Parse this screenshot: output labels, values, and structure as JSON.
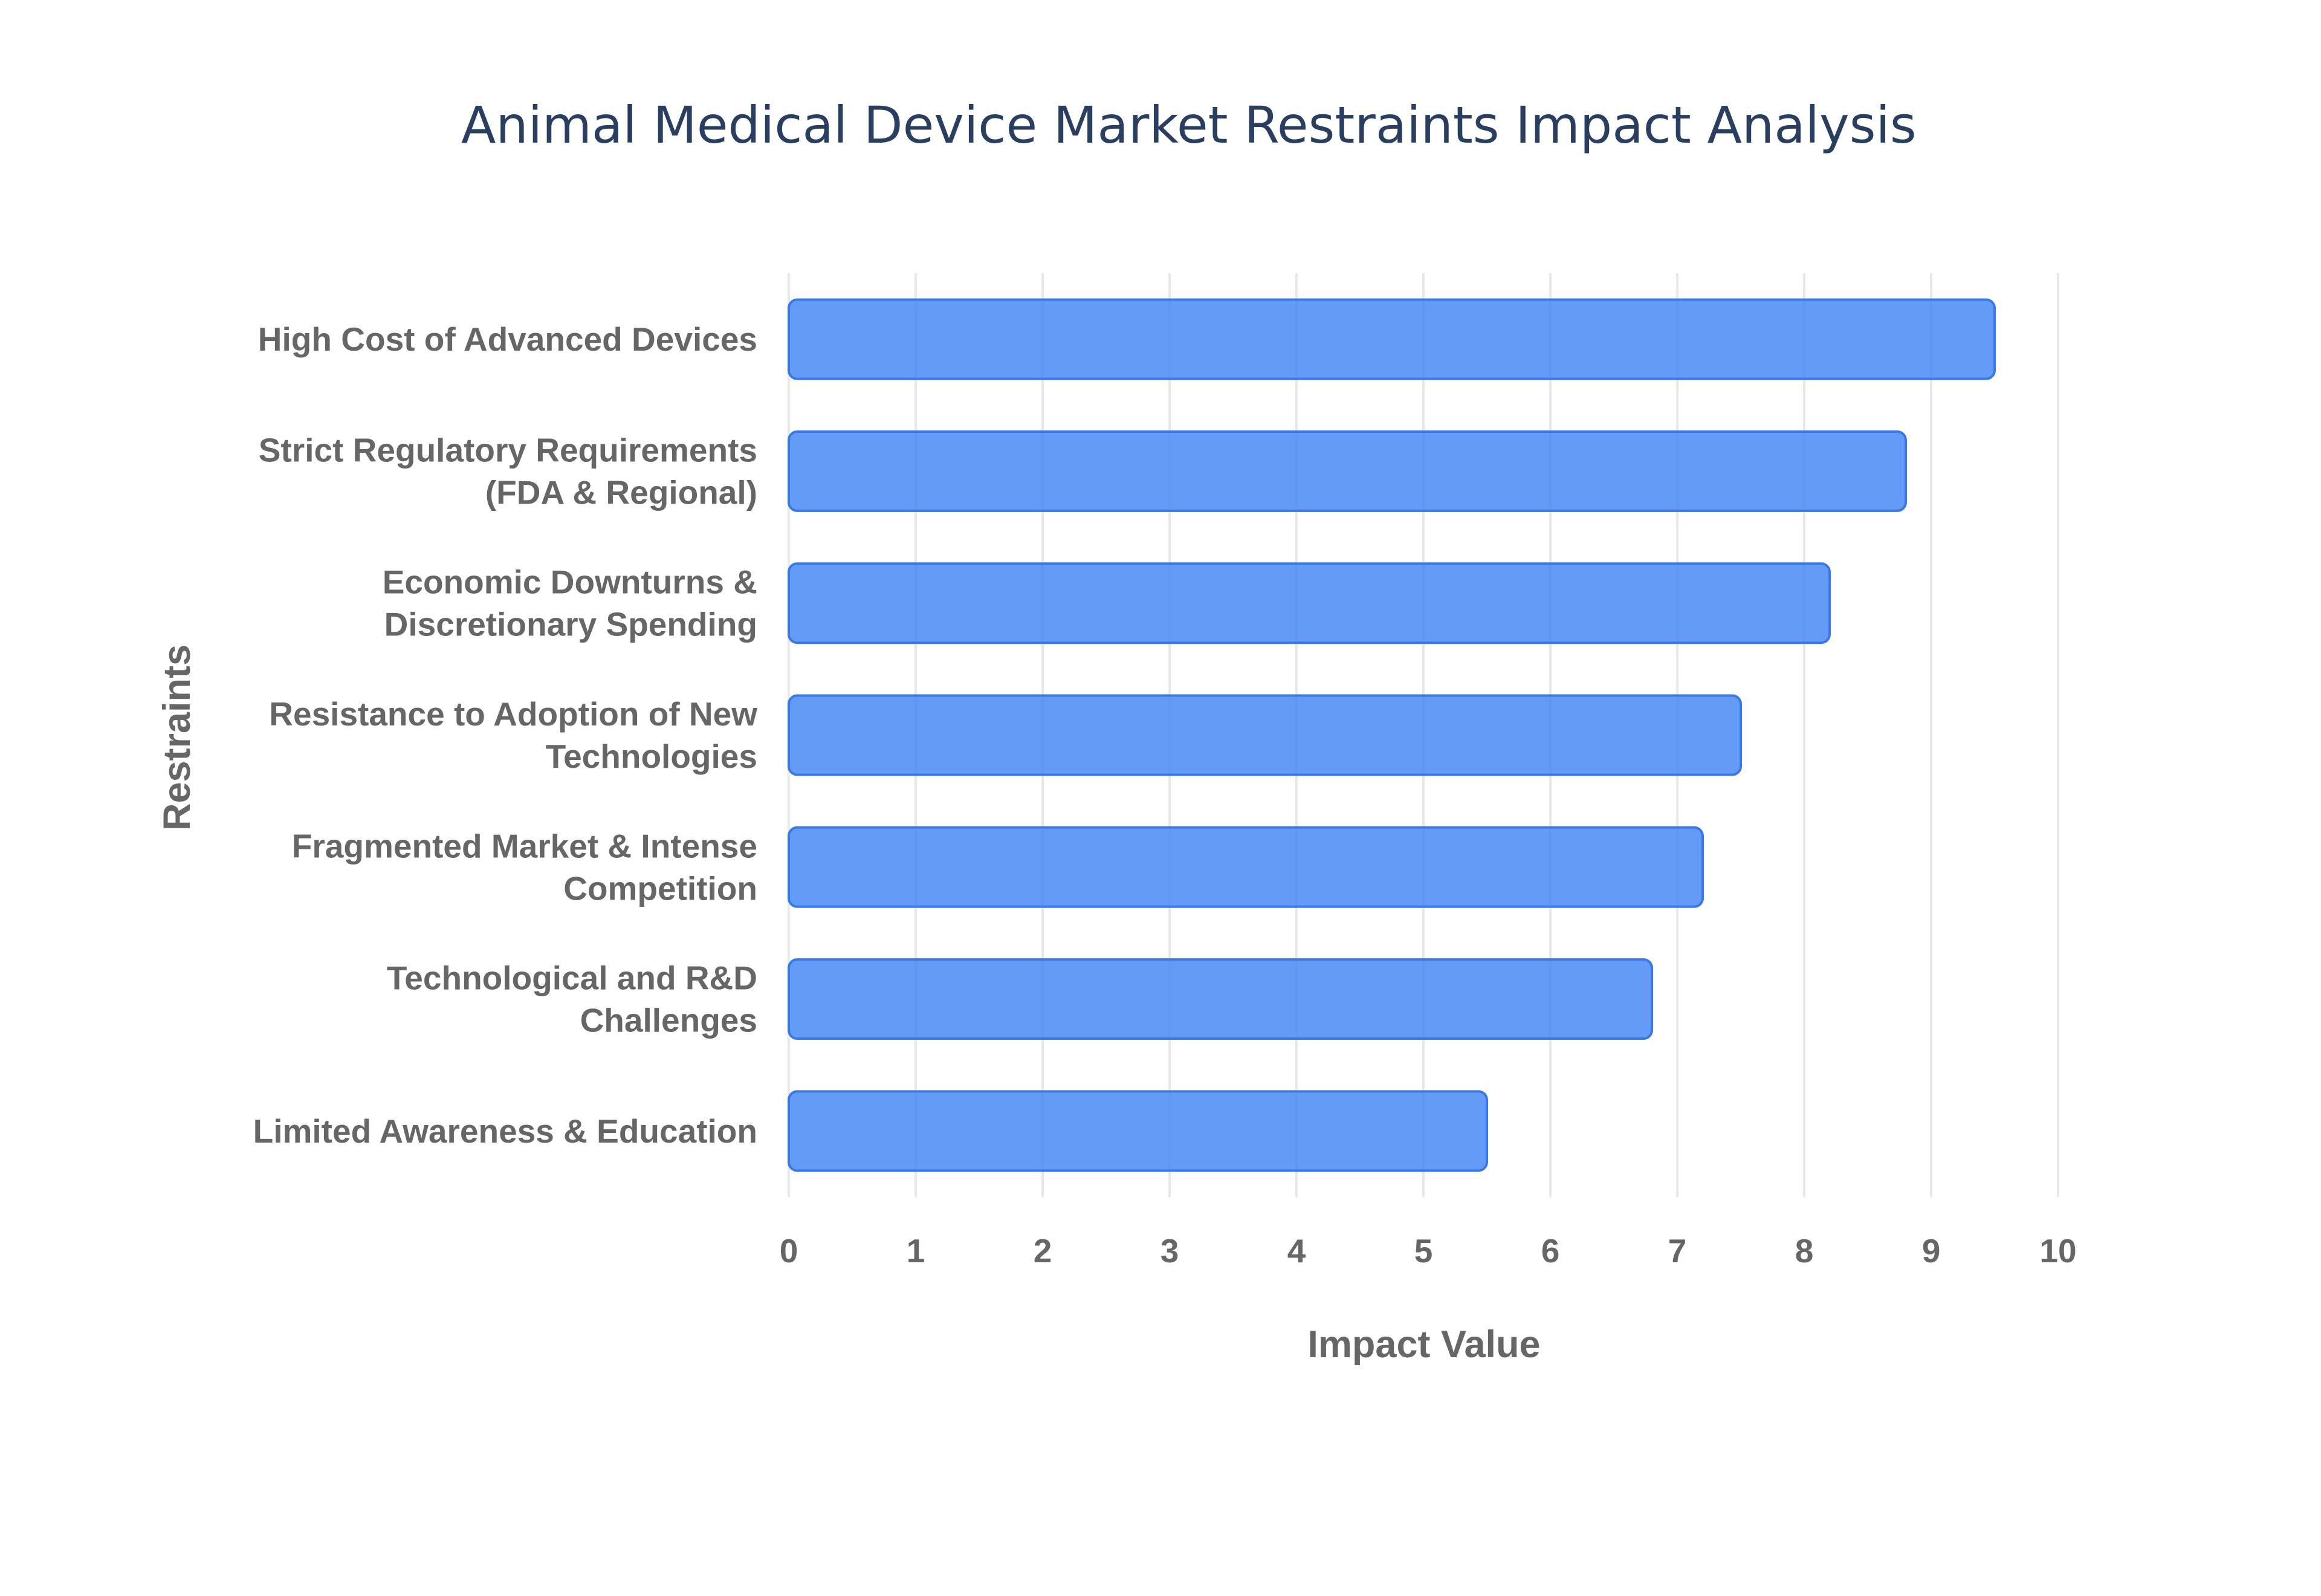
{
  "chart_data": {
    "type": "bar",
    "orientation": "horizontal",
    "title": "Animal Medical Device Market Restraints Impact Analysis",
    "xlabel": "Impact Value",
    "ylabel": "Restraints",
    "xlim": [
      0,
      10
    ],
    "xticks": [
      0,
      1,
      2,
      3,
      4,
      5,
      6,
      7,
      8,
      9,
      10
    ],
    "grid": true,
    "categories": [
      [
        "High Cost of Advanced Devices"
      ],
      [
        "Strict Regulatory Requirements",
        "(FDA & Regional)"
      ],
      [
        "Economic Downturns &",
        "Discretionary Spending"
      ],
      [
        "Resistance to Adoption of New",
        "Technologies"
      ],
      [
        "Fragmented Market & Intense",
        "Competition"
      ],
      [
        "Technological and R&D",
        "Challenges"
      ],
      [
        "Limited Awareness & Education"
      ]
    ],
    "values": [
      9.5,
      8.8,
      8.2,
      7.5,
      7.2,
      6.8,
      5.5
    ],
    "bar_color": "#4285f4"
  }
}
